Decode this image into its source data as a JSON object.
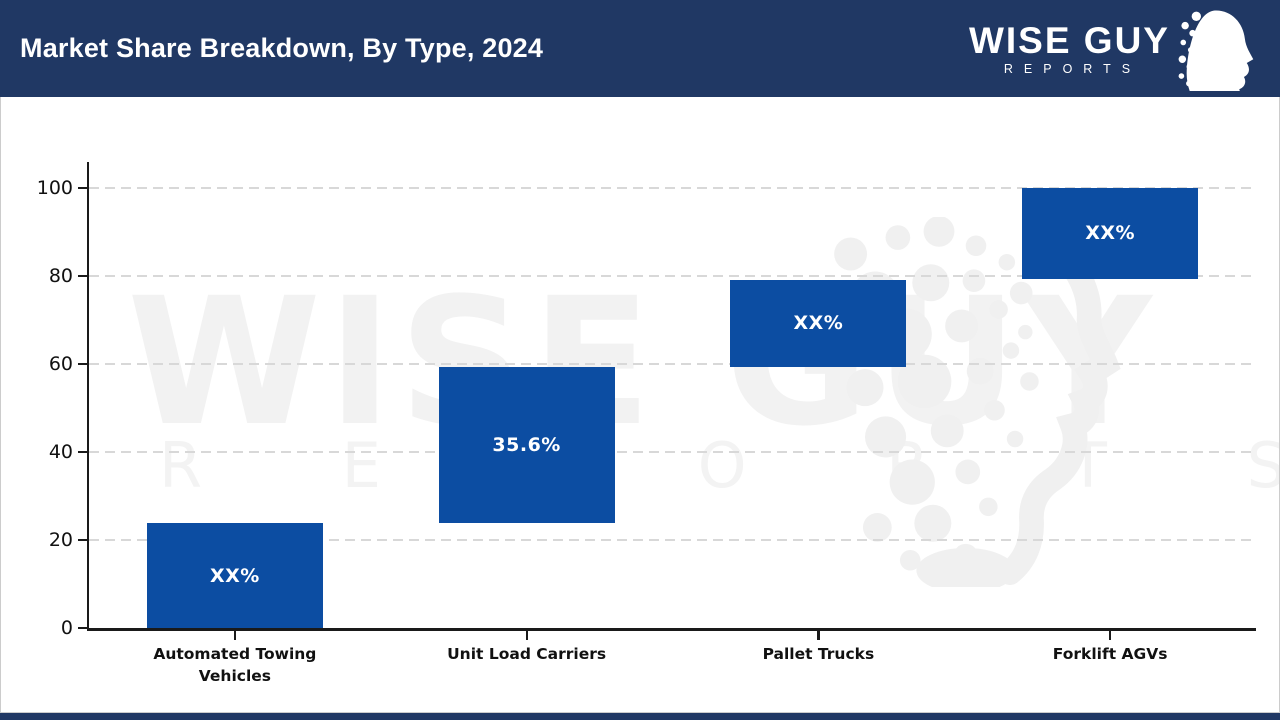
{
  "header": {
    "title": "Market Share Breakdown, By Type, 2024",
    "logo": {
      "line1": "WISE GUY",
      "line2": "REPORTS"
    }
  },
  "watermark": {
    "line1": "WISE GUY",
    "line2": "R E P O R T S"
  },
  "colors": {
    "header_bg": "#203864",
    "bar": "#0c4da2",
    "bar_label": "#ffffff",
    "grid": "#d8d8d8",
    "axis": "#1a1a1a",
    "tick_text": "#111111",
    "watermark": "#f2f2f2",
    "frame_border": "#cccccc"
  },
  "chart_data": {
    "type": "bar",
    "subtype": "waterfall",
    "title": "Market Share Breakdown, By Type, 2024",
    "categories": [
      "Automated Towing Vehicles",
      "Unit Load Carriers",
      "Pallet Trucks",
      "Forklift AGVs"
    ],
    "bars": [
      {
        "category": "Automated Towing Vehicles",
        "start": 0,
        "end": 23.8,
        "value_label": "XX%"
      },
      {
        "category": "Unit Load Carriers",
        "start": 23.8,
        "end": 59.4,
        "value_label": "35.6%"
      },
      {
        "category": "Pallet Trucks",
        "start": 59.4,
        "end": 79.2,
        "value_label": "XX%"
      },
      {
        "category": "Forklift AGVs",
        "start": 79.4,
        "end": 100,
        "value_label": "XX%"
      }
    ],
    "yticks": [
      0,
      20,
      40,
      60,
      80,
      100
    ],
    "ylim": [
      0,
      106
    ],
    "xlabel": "",
    "ylabel": "",
    "grid": "horizontal-dashed",
    "legend": "none"
  }
}
